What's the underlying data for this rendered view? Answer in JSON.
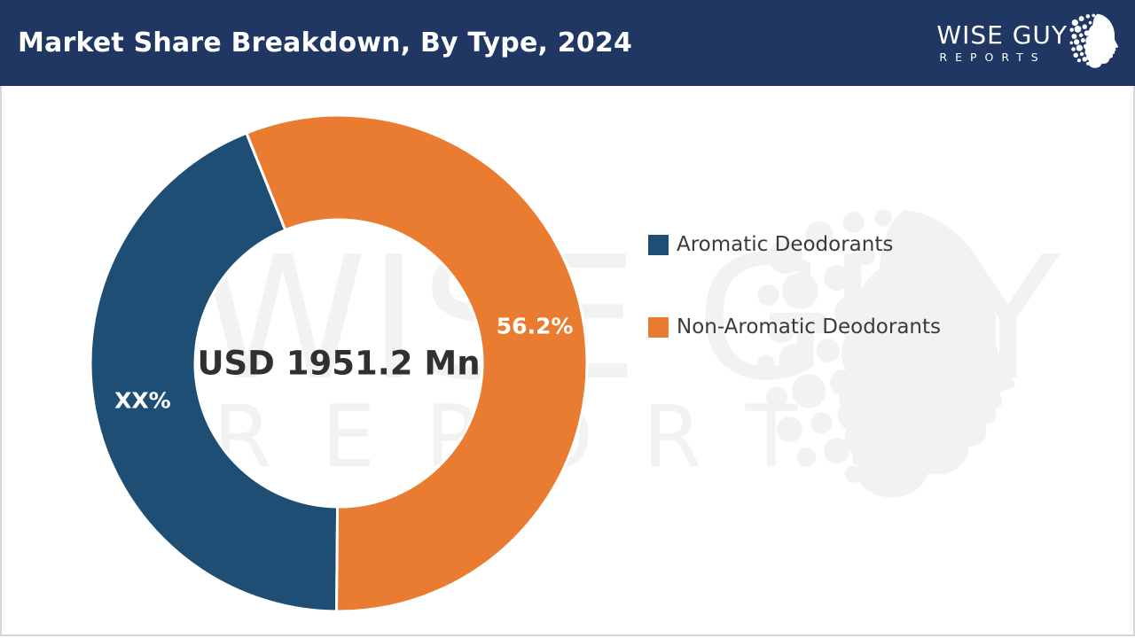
{
  "header": {
    "title": "Market Share Breakdown, By Type, 2024",
    "bg_color": "#203663",
    "logo": {
      "line1": "WISE GUY",
      "line2": "REPORTS"
    }
  },
  "chart_data": {
    "type": "pie",
    "subtype": "donut",
    "title": "Market Share Breakdown, By Type, 2024",
    "center_label": "USD 1951.2 Mn",
    "start_angle_deg": 180.5,
    "legend_position": "right",
    "series": [
      {
        "name": "Aromatic Deodorants",
        "value_pct": 43.8,
        "display_label": "XX%",
        "color": "#1F4E74"
      },
      {
        "name": "Non-Aromatic Deodorants",
        "value_pct": 56.2,
        "display_label": "56.2%",
        "color": "#E97C30"
      }
    ]
  },
  "watermark": {
    "line1": "WISE GUY",
    "line2": "REPORTS",
    "color": "#f2f2f2"
  }
}
